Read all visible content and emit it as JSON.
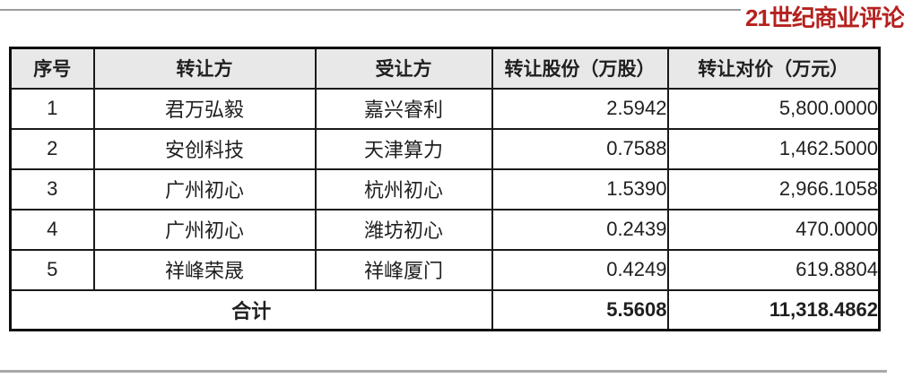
{
  "page": {
    "logo_text": "21世纪商业评论",
    "logo_color": "#b5211e",
    "rule_color": "#9c9c9c"
  },
  "table": {
    "headers": {
      "no": "序号",
      "transferor": "转让方",
      "transferee": "受让方",
      "shares": "转让股份（万股）",
      "price": "转让对价（万元）"
    },
    "rows": [
      {
        "no": "1",
        "transferor": "君万弘毅",
        "transferee": "嘉兴睿利",
        "shares": "2.5942",
        "price": "5,800.0000"
      },
      {
        "no": "2",
        "transferor": "安创科技",
        "transferee": "天津算力",
        "shares": "0.7588",
        "price": "1,462.5000"
      },
      {
        "no": "3",
        "transferor": "广州初心",
        "transferee": "杭州初心",
        "shares": "1.5390",
        "price": "2,966.1058"
      },
      {
        "no": "4",
        "transferor": "广州初心",
        "transferee": "潍坊初心",
        "shares": "0.2439",
        "price": "470.0000"
      },
      {
        "no": "5",
        "transferor": "祥峰荣晟",
        "transferee": "祥峰厦门",
        "shares": "0.4249",
        "price": "619.8804"
      }
    ],
    "total": {
      "label": "合计",
      "shares": "5.5608",
      "price": "11,318.4862"
    }
  }
}
